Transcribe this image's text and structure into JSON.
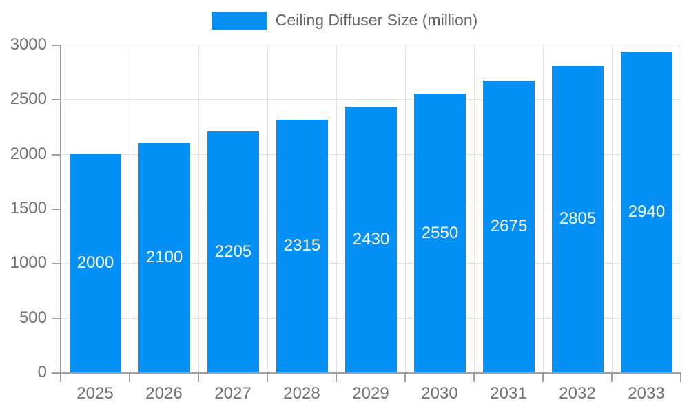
{
  "legend": {
    "label": "Ceiling Diffuser Size (million)"
  },
  "colors": {
    "bar": "#0590f8",
    "grid": "#e2e2e2",
    "axis": "#a0a0a0",
    "tick_label": "#717171",
    "legend_text": "#666666",
    "data_label": "#ffffff",
    "background": "#ffffff"
  },
  "chart_data": {
    "type": "bar",
    "title": "",
    "legend_entries": [
      "Ceiling Diffuser Size (million)"
    ],
    "legend_position": "top-center",
    "categories": [
      "2025",
      "2026",
      "2027",
      "2028",
      "2029",
      "2030",
      "2031",
      "2032",
      "2033"
    ],
    "values": [
      2000,
      2100,
      2205,
      2315,
      2430,
      2550,
      2675,
      2805,
      2940
    ],
    "data_labels": {
      "position": "inside-middle",
      "color": "#ffffff"
    },
    "xlabel": "",
    "ylabel": "",
    "ylim": [
      0,
      3000
    ],
    "yticks": [
      0,
      500,
      1000,
      1500,
      2000,
      2500,
      3000
    ],
    "grid": true
  }
}
